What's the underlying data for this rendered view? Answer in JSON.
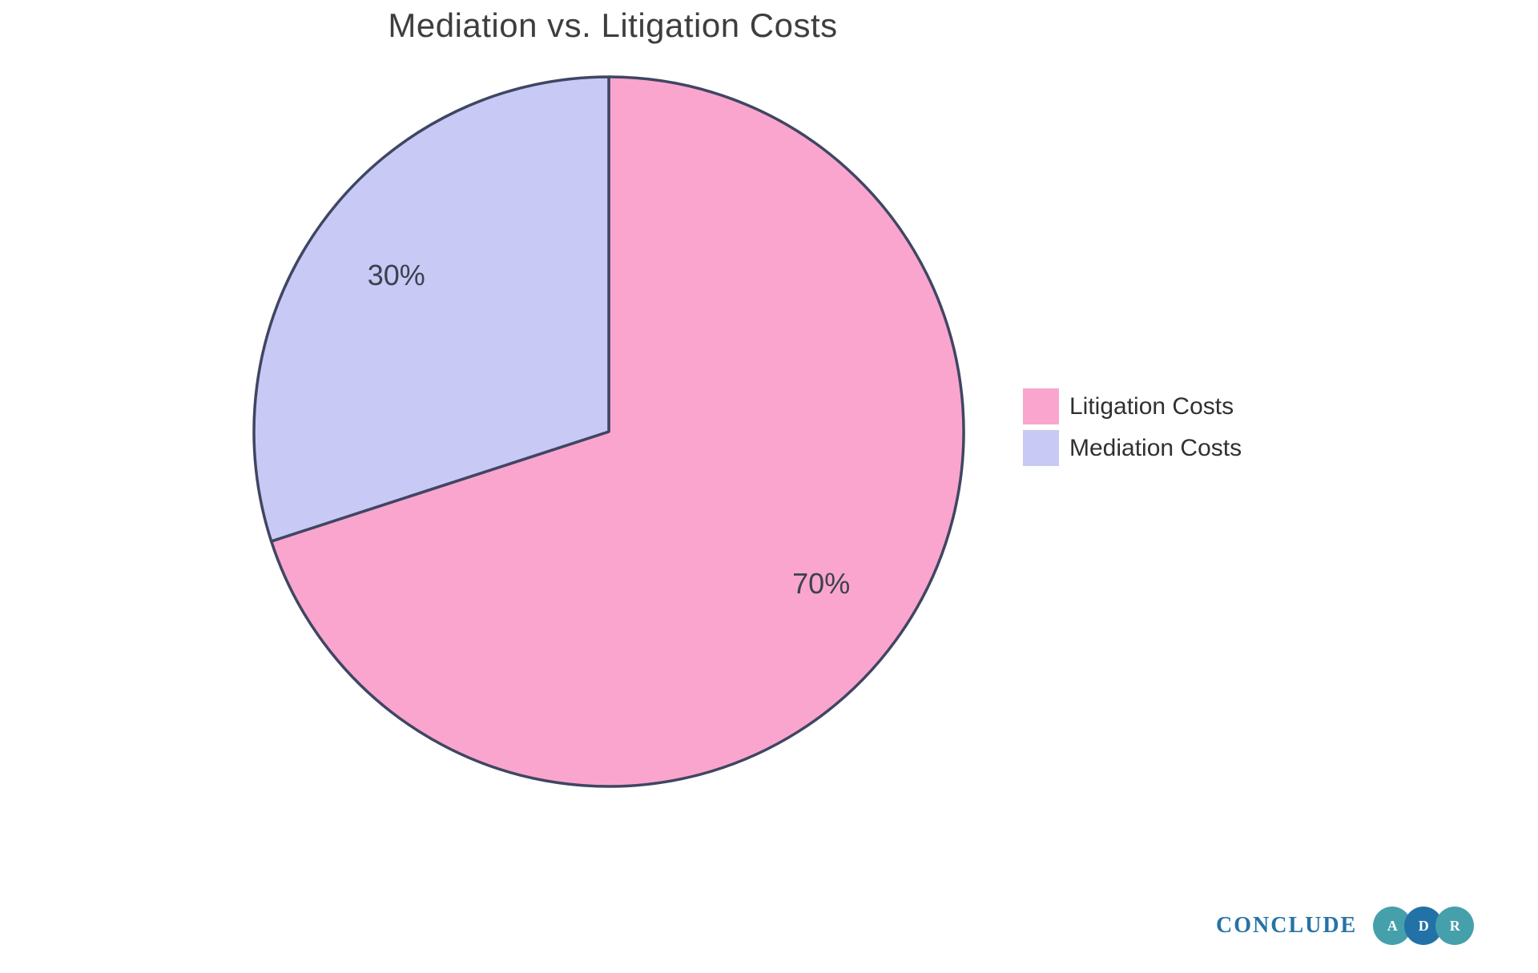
{
  "title": "Mediation vs. Litigation Costs",
  "chart_data": {
    "type": "pie",
    "title": "Mediation vs. Litigation Costs",
    "labels": [
      "Litigation Costs",
      "Mediation Costs"
    ],
    "values": [
      70,
      30
    ],
    "slice_labels": [
      "70%",
      "30%"
    ],
    "colors": [
      "#faa5ce",
      "#c9c9f6"
    ],
    "stroke_color": "#3f4662",
    "label_color": "#3d414d",
    "start_angle_deg": -90,
    "direction": "clockwise",
    "legend_position": "right"
  },
  "legend": {
    "items": [
      {
        "label": "Litigation Costs",
        "color": "#faa5ce"
      },
      {
        "label": "Mediation Costs",
        "color": "#c9c9f6"
      }
    ]
  },
  "branding": {
    "wordmark": "CONCLUDE",
    "wordmark_color": "#2673a6",
    "badges": [
      "A",
      "D",
      "R"
    ],
    "badge_colors": [
      "#45a0ac",
      "#2272a8",
      "#45a0ac"
    ]
  }
}
